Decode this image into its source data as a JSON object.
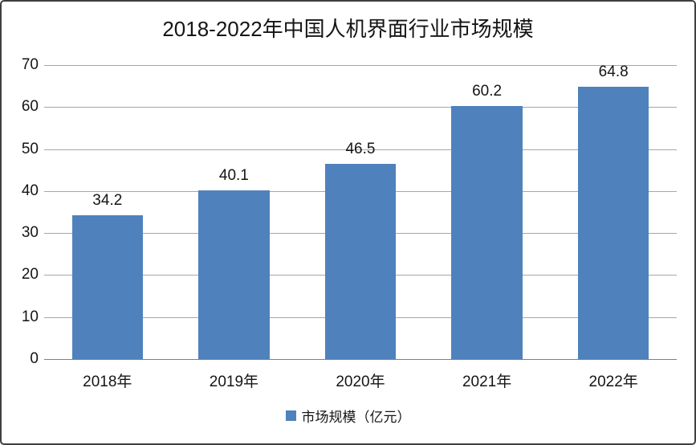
{
  "chart_data": {
    "type": "bar",
    "title": "2018-2022年中国人机界面行业市场规模",
    "categories": [
      "2018年",
      "2019年",
      "2020年",
      "2021年",
      "2022年"
    ],
    "values": [
      34.2,
      40.1,
      46.5,
      60.2,
      64.8
    ],
    "series": [
      {
        "name": "市场规模（亿元）",
        "values": [
          34.2,
          40.1,
          46.5,
          60.2,
          64.8
        ]
      }
    ],
    "xlabel": "",
    "ylabel": "",
    "ylim": [
      0,
      70
    ],
    "yticks": [
      0,
      10,
      20,
      30,
      40,
      50,
      60,
      70
    ],
    "grid": true,
    "legend_position": "bottom",
    "legend": [
      {
        "label": "市场规模（亿元）",
        "color": "#4f81bd"
      }
    ],
    "bar_color": "#4f81bd"
  },
  "colors": {
    "bar": "#4f81bd",
    "gridline": "#a6a6a6",
    "axis_line": "#7f7f7f",
    "text": "#151515",
    "border": "#3f3f3f",
    "background": "#ffffff"
  }
}
